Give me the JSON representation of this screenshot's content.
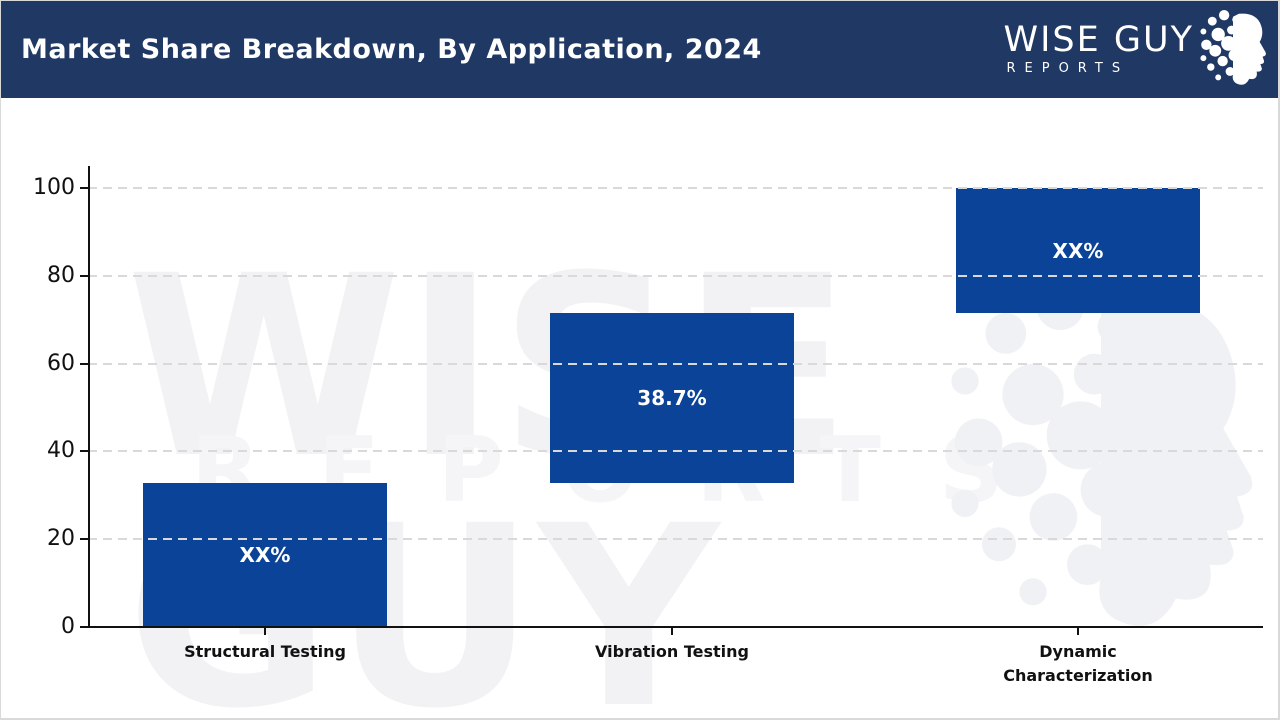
{
  "header": {
    "title": "Market Share Breakdown, By Application, 2024",
    "brand": {
      "line1": "WISE GUY",
      "line2": "REPORTS"
    }
  },
  "watermark": {
    "line1": "WISE GUY",
    "line2": "REPORTS"
  },
  "colors": {
    "header_bg": "#203864",
    "bar": "#0b4398",
    "bar_label": "#ffffff",
    "grid": "#d9d9d9",
    "axis": "#111111",
    "watermark_text": "#f2f2f5"
  },
  "chart_data": {
    "type": "bar",
    "subtype": "waterfall-floating-bars",
    "title": "Market Share Breakdown, By Application, 2024",
    "categories": [
      "Structural Testing",
      "Vibration Testing",
      "Dynamic\nCharacterization"
    ],
    "bars": [
      {
        "category": "Structural Testing",
        "label": "XX%",
        "start": 0,
        "end": 32.8
      },
      {
        "category": "Vibration Testing",
        "label": "38.7%",
        "start": 32.8,
        "end": 71.5
      },
      {
        "category": "Dynamic Characterization",
        "label": "XX%",
        "start": 71.5,
        "end": 100
      }
    ],
    "ylim": [
      0,
      100
    ],
    "yticks": [
      0,
      20,
      40,
      60,
      80,
      100
    ],
    "xlabel": "",
    "ylabel": "",
    "grid": "horizontal-dashed-over-bars",
    "legend": "none"
  }
}
